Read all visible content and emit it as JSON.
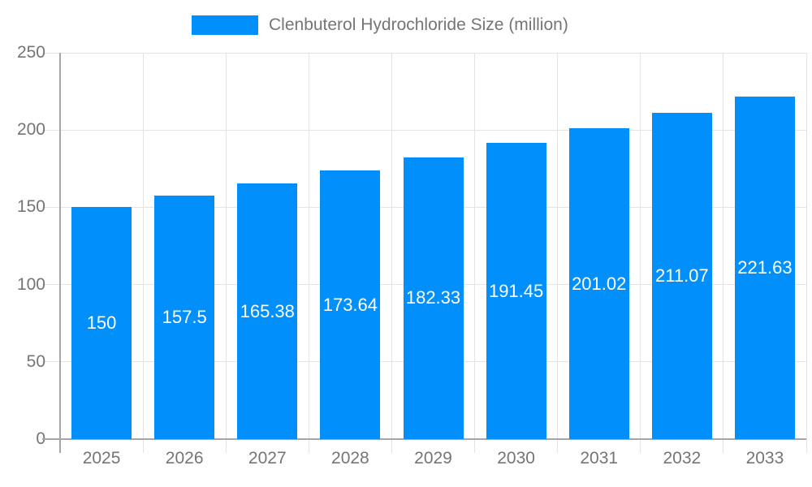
{
  "chart_data": {
    "type": "bar",
    "title": "Clenbuterol Hydrochloride Size (million)",
    "legend": {
      "position": "top",
      "entries": [
        "Clenbuterol Hydrochloride Size (million)"
      ]
    },
    "categories": [
      "2025",
      "2026",
      "2027",
      "2028",
      "2029",
      "2030",
      "2031",
      "2032",
      "2033"
    ],
    "values": [
      150,
      157.5,
      165.38,
      173.64,
      182.33,
      191.45,
      201.02,
      211.07,
      221.63
    ],
    "value_labels": [
      "150",
      "157.5",
      "165.38",
      "173.64",
      "182.33",
      "191.45",
      "201.02",
      "211.07",
      "221.63"
    ],
    "xlabel": "",
    "ylabel": "",
    "ylim": [
      0,
      250
    ],
    "yticks": [
      0,
      50,
      100,
      150,
      200,
      250
    ],
    "grid": true,
    "colors": {
      "bar": "#008ffb",
      "grid_line": "#e4e4e4",
      "axis_line": "#a6a6a6",
      "axis_label": "#757575",
      "value_label": "#ffffff",
      "background": "#ffffff"
    }
  }
}
